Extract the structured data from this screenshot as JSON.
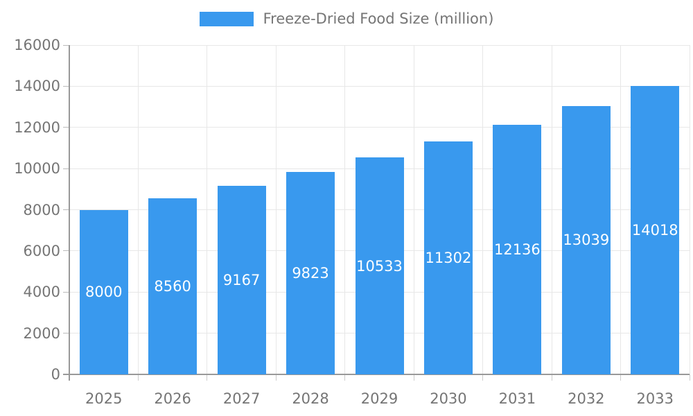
{
  "legend": {
    "series_label": "Freeze-Dried Food Size (million)"
  },
  "chart_data": {
    "type": "bar",
    "title": "",
    "xlabel": "",
    "ylabel": "",
    "categories": [
      "2025",
      "2026",
      "2027",
      "2028",
      "2029",
      "2030",
      "2031",
      "2032",
      "2033"
    ],
    "series": [
      {
        "name": "Freeze-Dried Food Size (million)",
        "values": [
          8000,
          8560,
          9167,
          9823,
          10533,
          11302,
          12136,
          13039,
          14018
        ],
        "color": "#3999EE"
      }
    ],
    "ylim": [
      0,
      16000
    ],
    "yticks": [
      0,
      2000,
      4000,
      6000,
      8000,
      10000,
      12000,
      14000,
      16000
    ],
    "grid": true,
    "legend_position": "top",
    "value_label_position": "inside-center",
    "value_label_color": "#FFFFFF"
  },
  "colors": {
    "background": "#FFFFFF",
    "bar": "#3999EE",
    "axis_line": "#999999",
    "grid_line": "#E7E7E7",
    "tick_mark": "#CCCCCC",
    "y_tick_mark": "#BBBBBB",
    "axis_text": "#757575",
    "legend_text": "#757575"
  }
}
